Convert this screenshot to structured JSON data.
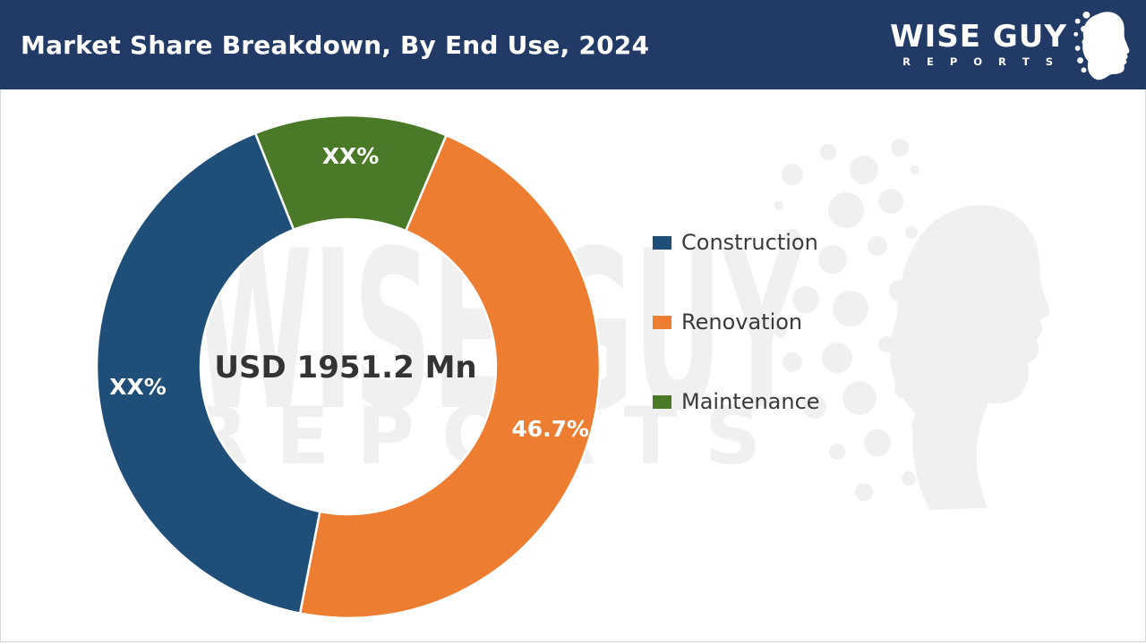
{
  "header": {
    "title": "Market Share Breakdown, By End Use, 2024",
    "background_color": "#223A66",
    "logo": {
      "name": "WISE GUY",
      "subtitle": "R E P O R T S"
    }
  },
  "chart_data": {
    "type": "pie",
    "subtype": "donut",
    "title": "Market Share Breakdown, By End Use, 2024",
    "center_label": "USD 1951.2 Mn",
    "start_angle_deg": -21.7,
    "direction": "clockwise",
    "inner_radius_ratio": 0.587,
    "legend_position": "right",
    "draw_order": [
      "Maintenance",
      "Renovation",
      "Construction"
    ],
    "segments": [
      {
        "name": "Construction",
        "value_pct": 40.9,
        "display_label": "XX%",
        "color": "#1F4E79"
      },
      {
        "name": "Renovation",
        "value_pct": 46.7,
        "display_label": "46.7%",
        "color": "#ED7D31"
      },
      {
        "name": "Maintenance",
        "value_pct": 12.4,
        "display_label": "XX%",
        "color": "#4A7A28"
      }
    ]
  },
  "watermark": {
    "line1": "WISE GUY",
    "line2": "R E P O R T S"
  },
  "colors": {
    "header_navy": "#223A66",
    "construction_blue": "#1F4E79",
    "renovation_orange": "#ED7D31",
    "maintenance_green": "#4A7A28",
    "text_dark": "#333333",
    "frame_gray": "#D7D7D7",
    "watermark_gray": "#F0F0F0"
  }
}
